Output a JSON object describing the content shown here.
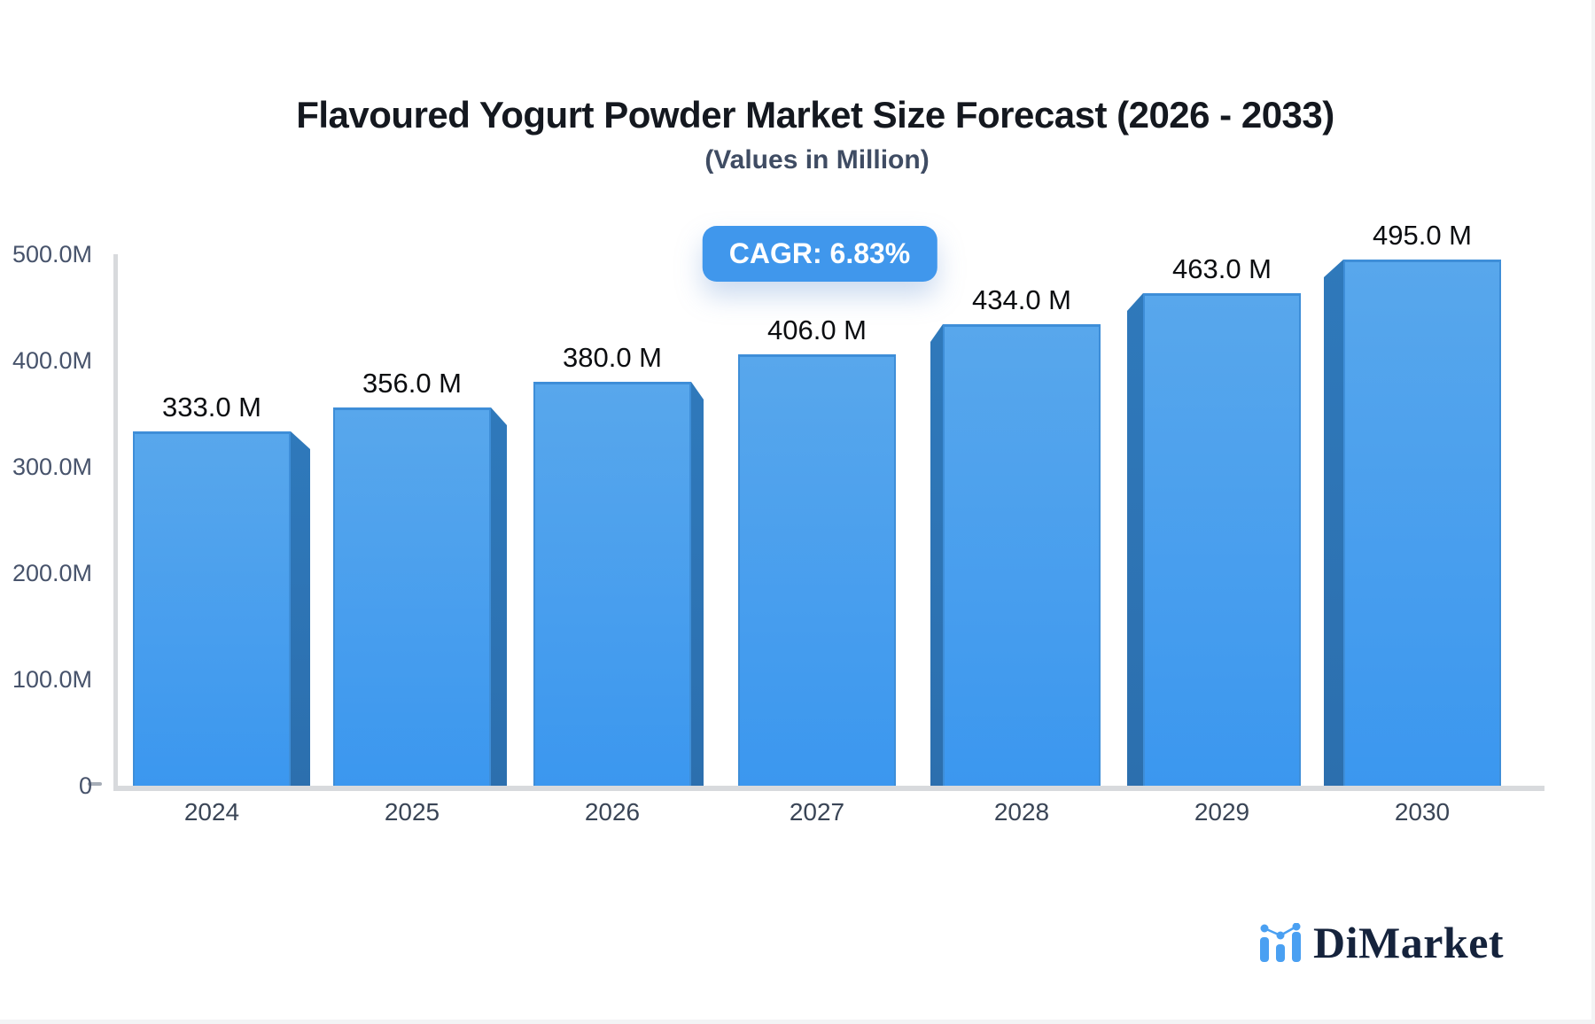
{
  "title": "Flavoured Yogurt Powder Market Size Forecast (2026 - 2033)",
  "subtitle": "(Values in Million)",
  "badge": {
    "label": "CAGR: 6.83%"
  },
  "brand": {
    "name": "DiMarket",
    "icon": "mini-bar-line-chart-icon"
  },
  "colors": {
    "bar_face_top": "#58a7ec",
    "bar_face_bottom": "#3b97ef",
    "bar_face_border": "#3e8ed8",
    "bar_side_top": "#2f79bb",
    "bar_side_bottom": "#2c6fae",
    "badge_bg": "#4097ec",
    "badge_text": "#ffffff",
    "axis_line": "#d8dadd",
    "logo_blue": "#4aa0f2",
    "logo_navy": "#15233c"
  },
  "chart_data": {
    "type": "bar",
    "style": "3d-perspective-columns",
    "title": "Flavoured Yogurt Powder Market Size Forecast (2026 - 2033)",
    "subtitle": "(Values in Million)",
    "categories": [
      "2024",
      "2025",
      "2026",
      "2027",
      "2028",
      "2029",
      "2030"
    ],
    "values": [
      333,
      356,
      380,
      406,
      434,
      463,
      495
    ],
    "value_label_suffix": " M",
    "unit": "Million",
    "xlabel": "",
    "ylabel": "",
    "ylim": [
      0,
      500
    ],
    "y_ticks": [
      {
        "value": 500,
        "label": "500.0M"
      },
      {
        "value": 400,
        "label": "400.0M"
      },
      {
        "value": 300,
        "label": "300.0M"
      },
      {
        "value": 200,
        "label": "200.0M"
      },
      {
        "value": 100,
        "label": "100.0M"
      },
      {
        "value": 0,
        "label": "0"
      }
    ],
    "grid": false,
    "legend": null,
    "annotations": [
      "CAGR: 6.83%"
    ]
  }
}
